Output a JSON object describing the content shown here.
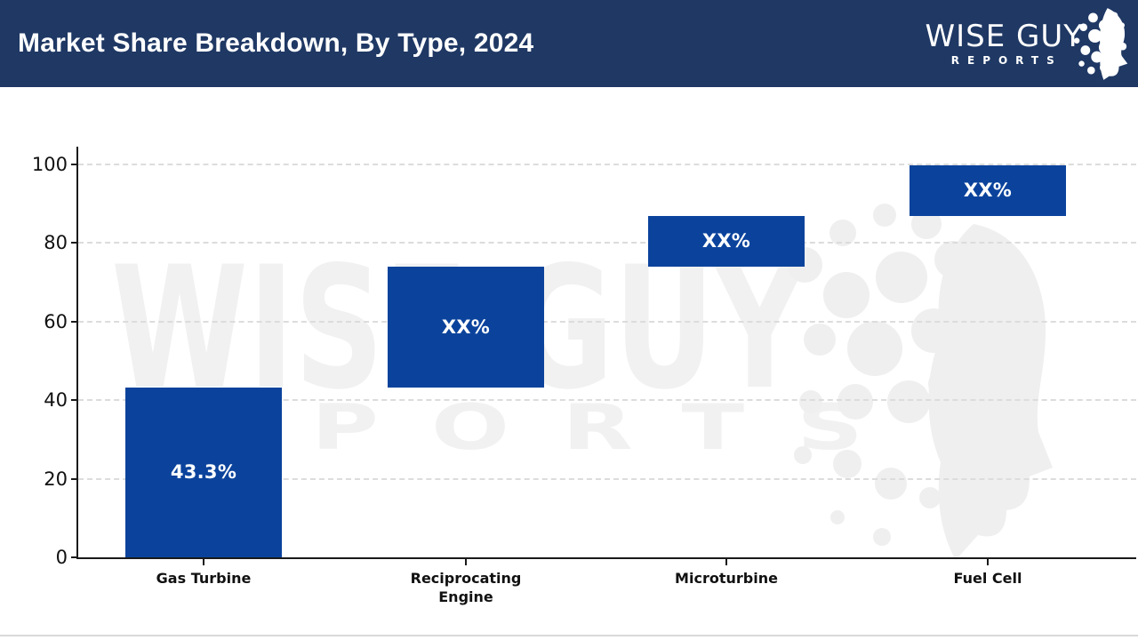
{
  "header": {
    "title": "Market Share Breakdown, By Type, 2024",
    "logo": {
      "name": "WISE GUY",
      "sub": "REPORTS"
    }
  },
  "watermark": {
    "word": "WISE GUY",
    "word2": "PORTS"
  },
  "colors": {
    "header_bg": "#1f3864",
    "bar_blue": "#0b439c",
    "gridline": "#dcdcdc",
    "axis": "#1a1a1a",
    "watermark_gray": "#f1f1f1",
    "value_label": "#ffffff"
  },
  "chart_data": {
    "type": "bar",
    "subtype": "waterfall",
    "title": "Market Share Breakdown, By Type, 2024",
    "categories": [
      "Gas Turbine",
      "Reciprocating Engine",
      "Microturbine",
      "Fuel Cell"
    ],
    "segments": [
      {
        "label": "Gas Turbine",
        "start": 0,
        "end": 43.3,
        "display": "43.3%"
      },
      {
        "label": "Reciprocating Engine",
        "start": 43.3,
        "end": 74.0,
        "display": "XX%"
      },
      {
        "label": "Microturbine",
        "start": 74.0,
        "end": 86.9,
        "display": "XX%"
      },
      {
        "label": "Fuel Cell",
        "start": 86.9,
        "end": 99.8,
        "display": "XX%"
      }
    ],
    "xlabel": "",
    "ylabel": "",
    "ylim": [
      0,
      105
    ],
    "yticks": [
      0,
      20,
      40,
      60,
      80,
      100
    ],
    "grid": "horizontal-dashed",
    "legend": "none",
    "bar_color": "#0b439c",
    "value_label_color": "#ffffff"
  }
}
